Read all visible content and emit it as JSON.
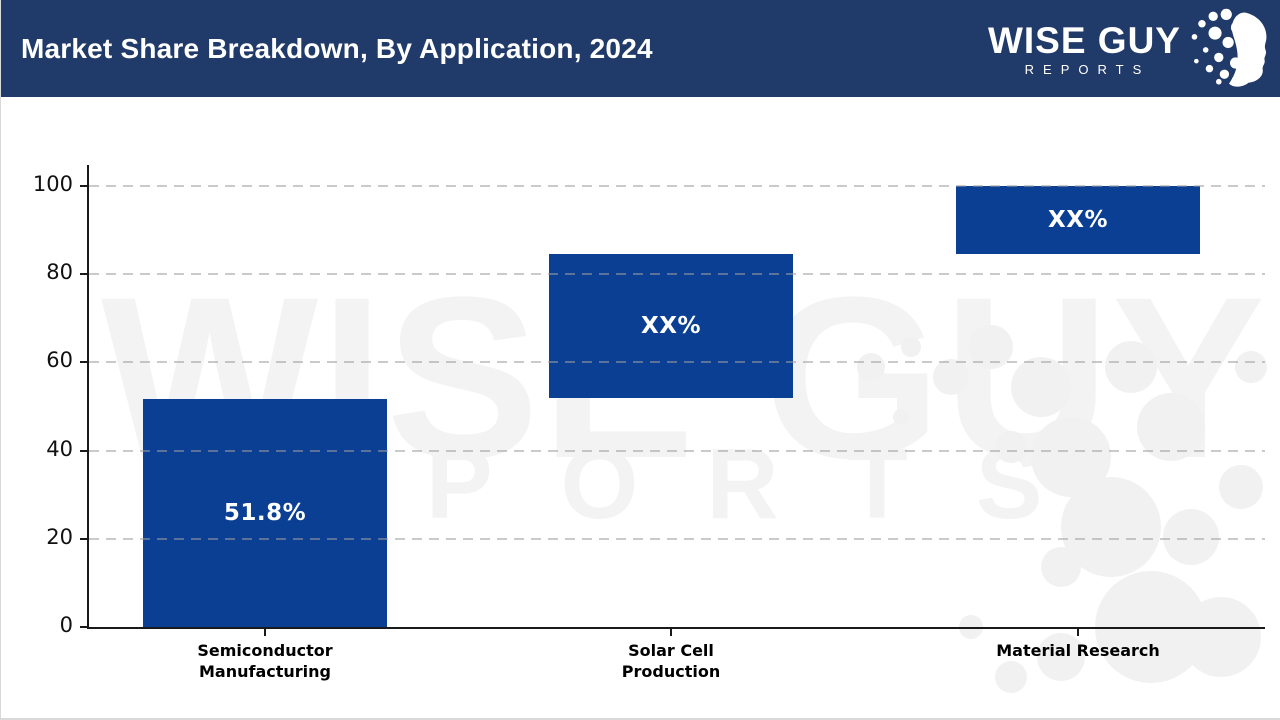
{
  "header": {
    "title": "Market Share Breakdown, By Application, 2024",
    "logo": {
      "name_top": "WISE GUY",
      "name_bottom": "REPORTS"
    }
  },
  "watermark": {
    "line1": "WISE GUY",
    "line2": "REPORTS"
  },
  "chart_data": {
    "type": "bar",
    "subtype": "floating-segment-breakdown",
    "title": "Market Share Breakdown, By Application, 2024",
    "categories": [
      "Semiconductor Manufacturing",
      "Solar Cell Production",
      "Material Research"
    ],
    "category_label_lines": [
      [
        "Semiconductor",
        "Manufacturing"
      ],
      [
        "Solar Cell",
        "Production"
      ],
      [
        "Material Research"
      ]
    ],
    "segments": [
      {
        "category": "Semiconductor Manufacturing",
        "start": 0,
        "end": 51.8,
        "label": "51.8%"
      },
      {
        "category": "Solar Cell Production",
        "start": 51.8,
        "end": 84.6,
        "label": "XX%"
      },
      {
        "category": "Material Research",
        "start": 84.6,
        "end": 100,
        "label": "XX%"
      }
    ],
    "yticks": [
      0,
      20,
      40,
      60,
      80,
      100
    ],
    "ylim": [
      0,
      104
    ],
    "xlabel": "",
    "ylabel": "",
    "grid": "dashed-horizontal",
    "legend": "none",
    "bar_color": "#0a3f94",
    "bar_label_color": "#ffffff",
    "axis_color": "#1a1a1a",
    "grid_color": "#d9d9d9"
  }
}
